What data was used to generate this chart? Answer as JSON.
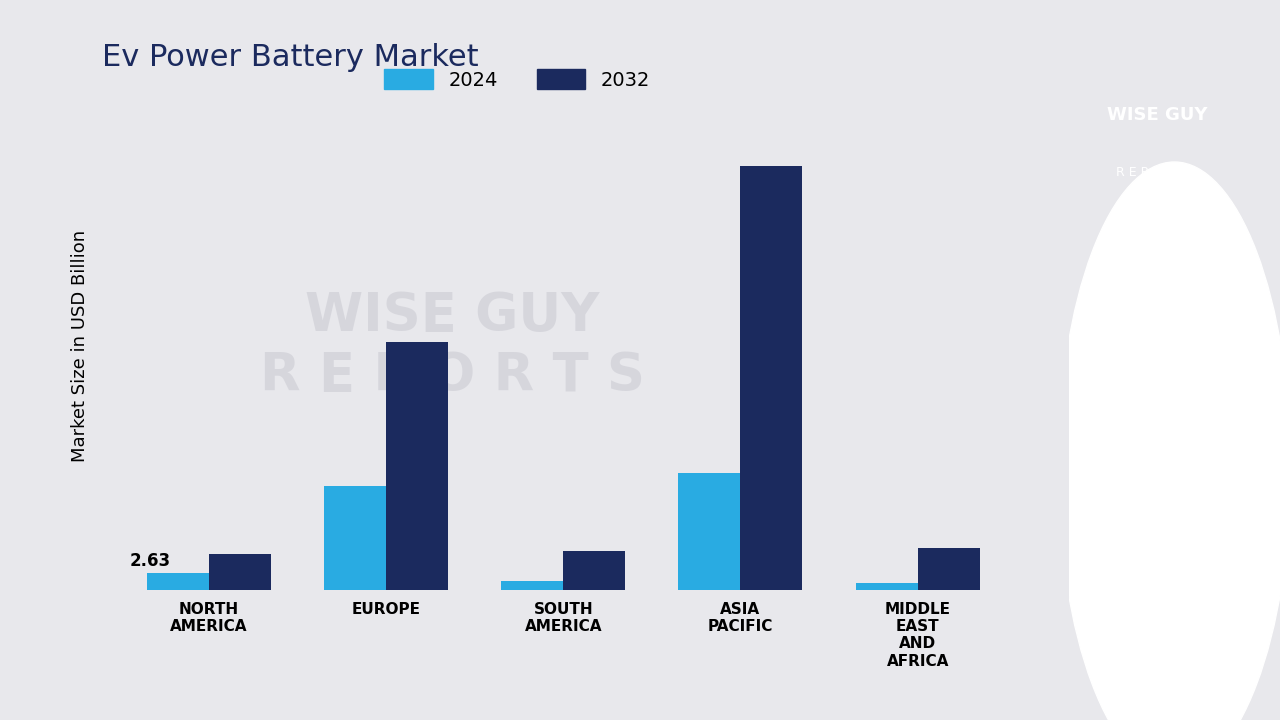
{
  "title": "Ev Power Battery Market",
  "ylabel": "Market Size in USD Billion",
  "categories": [
    "NORTH\nAMERICA",
    "EUROPE",
    "SOUTH\nAMERICA",
    "ASIA\nPACIFIC",
    "MIDDLE\nEAST\nAND\nAFRICA"
  ],
  "values_2024": [
    2.63,
    16.0,
    1.5,
    18.0,
    1.2
  ],
  "values_2032": [
    5.5,
    38.0,
    6.0,
    65.0,
    6.5
  ],
  "color_2024": "#29ABE2",
  "color_2032": "#1B2A5E",
  "annotation_value": "2.63",
  "annotation_category": 0,
  "background_color": "#E8E8EC",
  "title_color": "#1B2A5E",
  "bar_width": 0.35,
  "legend_labels": [
    "2024",
    "2032"
  ],
  "ylim": [
    0,
    75
  ],
  "right_panel_color": "#1B2A5E",
  "watermark_color": "#C8C8D0",
  "watermark_alpha": 0.55
}
